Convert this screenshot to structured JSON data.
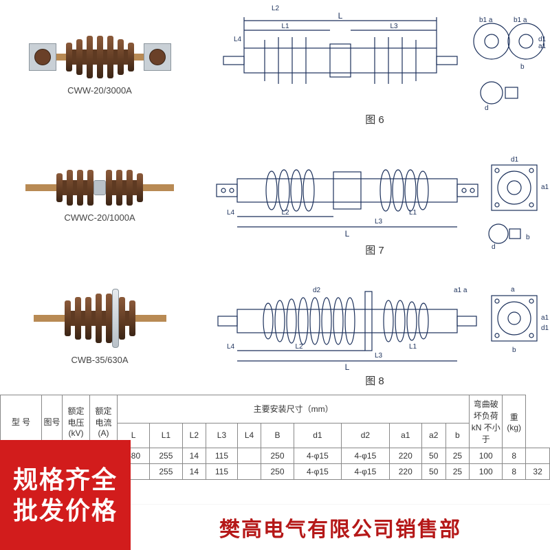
{
  "colors": {
    "accent_red": "#d21c1c",
    "accent_red_text": "#b51818",
    "insulator_brown_light": "#8b5a3a",
    "insulator_brown_mid": "#5e3a22",
    "insulator_brown_dark": "#3b2516",
    "rod_copper": "#b88a54",
    "metal_light": "#c9d0d6",
    "metal_border": "#8a949c",
    "drawing_stroke": "#1a2f5a",
    "text_gray": "#444444"
  },
  "products": [
    {
      "label": "CWW-20/3000A",
      "figure_label": "图 6",
      "style": "square_flange_double"
    },
    {
      "label": "CWWC-20/1000A",
      "figure_label": "图 7",
      "style": "mid_split"
    },
    {
      "label": "CWB-35/630A",
      "figure_label": "图 8",
      "style": "disc_flange"
    }
  ],
  "drawing_dimension_labels": {
    "fig6_top": [
      "L2",
      "L2"
    ],
    "fig6_main": [
      "L4",
      "L1",
      "L3",
      "L1"
    ],
    "fig6_overall": "L",
    "fig6_side": [
      "b1",
      "a",
      "b1",
      "a",
      "d",
      "a1",
      "d1",
      "b"
    ],
    "fig7_main": [
      "L4",
      "L2",
      "L1",
      "L3"
    ],
    "fig7_overall": "L",
    "fig7_side": [
      "d",
      "a1",
      "d1",
      "b"
    ],
    "fig8_top": [
      "a1",
      "a"
    ],
    "fig8_main": [
      "L4",
      "L2",
      "L1",
      "L3"
    ],
    "fig8_overall": "L",
    "fig8_side": [
      "d2",
      "a1",
      "a",
      "d1",
      "b"
    ]
  },
  "table": {
    "header_row1": [
      "型 号",
      "图号",
      "额定电压(kV)",
      "额定电流(A)",
      "主要安装尺寸（mm）",
      "弯曲破坏负荷 kN 不小于",
      "重(kg)"
    ],
    "dim_group_span": 11,
    "dim_cols": [
      "L",
      "L1",
      "L2",
      "L3",
      "L4",
      "B",
      "d1",
      "d2",
      "a1",
      "a2",
      "b"
    ],
    "rows": [
      [
        "",
        "",
        "",
        "",
        "580",
        "255",
        "14",
        "115",
        "",
        "250",
        "4-φ15",
        "4-φ15",
        "220",
        "50",
        "25",
        "100",
        "8",
        ""
      ],
      [
        "",
        "",
        "",
        "",
        "",
        "255",
        "14",
        "115",
        "",
        "250",
        "4-φ15",
        "4-φ15",
        "220",
        "50",
        "25",
        "100",
        "8",
        "32"
      ]
    ]
  },
  "banner_left_text": "规格齐全\n批发价格",
  "banner_bottom_text": "樊高电气有限公司销售部"
}
